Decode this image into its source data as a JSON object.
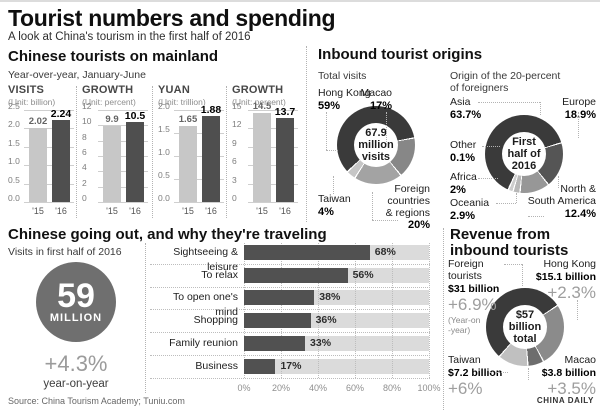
{
  "page": {
    "title": "Tourist numbers and spending",
    "subtitle": "A look at China's tourism in the first half of 2016",
    "source": "Source: China Tourism Academy; Tuniu.com",
    "brand": "CHINA DAILY"
  },
  "mainland": {
    "heading": "Chinese tourists on mainland",
    "subheading": "Year-over-year, January-June"
  },
  "inbound": {
    "heading": "Inbound tourist origins",
    "donut1_title": "Total visits",
    "donut2_title": "Origin of the 20-percent\nof foreigners"
  },
  "outbound": {
    "heading": "Chinese going out, and why they're traveling",
    "stat_label": "Visits in first half of 2016",
    "stat_value": "59",
    "stat_unit": "MILLION",
    "stat_growth": "+4.3%",
    "stat_growth_label": "year-on-year"
  },
  "revenue": {
    "heading": "Revenue from\ninbound tourists"
  },
  "chart_data": [
    {
      "id": "mainland-visits",
      "type": "bar",
      "title": "VISITS",
      "unit": "(Unit: billion)",
      "categories": [
        "'15",
        "'16"
      ],
      "values": [
        2.02,
        2.24
      ],
      "ticks": [
        "2.5",
        "2.0",
        "1.5",
        "1.0",
        "0.5",
        "0.0"
      ],
      "ylim": [
        0,
        2.5
      ]
    },
    {
      "id": "mainland-visit-growth",
      "type": "bar",
      "title": "GROWTH",
      "unit": "(Unit: percent)",
      "categories": [
        "'15",
        "'16"
      ],
      "values": [
        9.9,
        10.5
      ],
      "ticks": [
        "12",
        "10",
        "8",
        "6",
        "4",
        "2",
        "0"
      ],
      "ylim": [
        0,
        12
      ]
    },
    {
      "id": "mainland-spending-yuan",
      "type": "bar",
      "title": "YUAN",
      "unit": "(Unit: trillion)",
      "categories": [
        "'15",
        "'16"
      ],
      "values": [
        1.65,
        1.88
      ],
      "ticks": [
        "2.0",
        "1.5",
        "1.0",
        "0.5",
        "0.0"
      ],
      "ylim": [
        0,
        2
      ]
    },
    {
      "id": "mainland-spending-growth",
      "type": "bar",
      "title": "GROWTH",
      "unit": "(Unit: percent)",
      "categories": [
        "'15",
        "'16"
      ],
      "values": [
        14.5,
        13.7
      ],
      "ticks": [
        "15",
        "12",
        "9",
        "6",
        "3",
        "0"
      ],
      "ylim": [
        0,
        15
      ]
    },
    {
      "id": "why-traveling",
      "type": "bar",
      "orientation": "horizontal",
      "categories": [
        "Sightseeing & leisure",
        "To relax",
        "To open one's mind",
        "Shopping",
        "Family reunion",
        "Business"
      ],
      "values": [
        68,
        56,
        38,
        36,
        33,
        17
      ],
      "x_ticks": [
        "0%",
        "20%",
        "40%",
        "60%",
        "80%",
        "100%"
      ],
      "xlim": [
        0,
        100
      ]
    },
    {
      "id": "total-visits-origin",
      "type": "pie",
      "center_text": "67.9\nmillion\nvisits",
      "start_angle": 228,
      "slices": [
        {
          "label": "Hong Kong",
          "pct": "59%",
          "value": 59,
          "color": "#3a3a3a"
        },
        {
          "label": "Macao",
          "pct": "17%",
          "value": 17,
          "color": "#878787"
        },
        {
          "label": "Foreign\ncountries\n& regions",
          "pct": "20%",
          "value": 20,
          "color": "#a3a3a3"
        },
        {
          "label": "Taiwan",
          "pct": "4%",
          "value": 4,
          "color": "#c6c6c6"
        }
      ]
    },
    {
      "id": "foreigner-origin",
      "type": "pie",
      "center_text": "First\nhalf of\n2016",
      "start_angle": 205,
      "slices": [
        {
          "label": "Asia",
          "pct": "63.7%",
          "value": 63.7,
          "color": "#3a3a3a"
        },
        {
          "label": "Europe",
          "pct": "18.9%",
          "value": 18.9,
          "color": "#555555"
        },
        {
          "label": "North &\nSouth America",
          "pct": "12.4%",
          "value": 12.4,
          "color": "#979797"
        },
        {
          "label": "Oceania",
          "pct": "2.9%",
          "value": 2.9,
          "color": "#b8b8b8"
        },
        {
          "label": "Africa",
          "pct": "2%",
          "value": 2,
          "color": "#cdcdcd"
        },
        {
          "label": "Other",
          "pct": "0.1%",
          "value": 0.1,
          "color": "#e5e5e5"
        }
      ]
    },
    {
      "id": "inbound-revenue",
      "type": "pie",
      "center_text": "$57\nbillion\ntotal",
      "start_angle": 222,
      "slices": [
        {
          "label": "Foreign tourists",
          "amount": "$31 billion",
          "growth": "+6.9%",
          "growth_note": "(Year-on\n-year)",
          "value": 31,
          "color": "#3a3a3a"
        },
        {
          "label": "Hong Kong",
          "amount": "$15.1 billion",
          "growth": "+2.3%",
          "value": 15.1,
          "color": "#8b8b8b"
        },
        {
          "label": "Macao",
          "amount": "$3.8 billion",
          "growth": "+3.5%",
          "value": 3.8,
          "color": "#6d6d6d"
        },
        {
          "label": "Taiwan",
          "amount": "$7.2 billion",
          "growth": "+6%",
          "value": 7.2,
          "color": "#c0c0c0"
        }
      ]
    }
  ]
}
